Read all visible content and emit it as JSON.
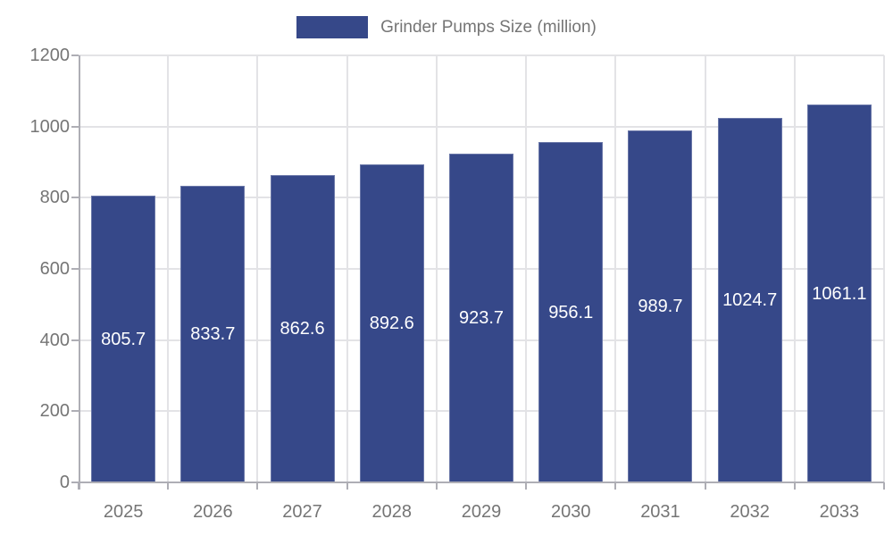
{
  "legend": {
    "label": "Grinder Pumps Size (million)"
  },
  "chart_data": {
    "type": "bar",
    "title": "",
    "legend_entries": [
      "Grinder Pumps Size (million)"
    ],
    "legend_position": "top-center",
    "categories": [
      "2025",
      "2026",
      "2027",
      "2028",
      "2029",
      "2030",
      "2031",
      "2032",
      "2033"
    ],
    "values": [
      805.7,
      833.7,
      862.6,
      892.6,
      923.7,
      956.1,
      989.7,
      1024.7,
      1061.1
    ],
    "value_labels": [
      "805.7",
      "833.7",
      "862.6",
      "892.6",
      "923.7",
      "956.1",
      "989.7",
      "1024.7",
      "1061.1"
    ],
    "xlabel": "",
    "ylabel": "",
    "ylim": [
      0,
      1200
    ],
    "yticks": [
      0,
      200,
      400,
      600,
      800,
      1000,
      1200
    ],
    "grid": true,
    "colors": {
      "bar": "#364889",
      "bar_edge": "#6a77a8",
      "grid": "#e3e3e6",
      "axis": "#aeaeb5",
      "tick_text": "#757575",
      "value_text": "#ffffff"
    }
  }
}
